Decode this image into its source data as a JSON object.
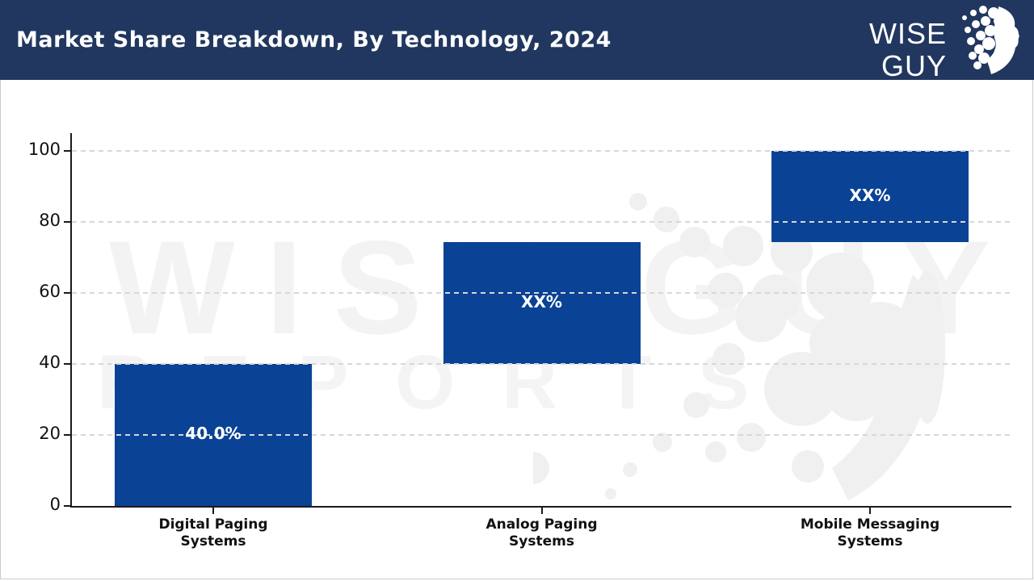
{
  "header": {
    "title": "Market Share Breakdown, By Technology, 2024",
    "bg_color": "#21375f",
    "logo": {
      "line1": "WISE GUY",
      "line2": "REPORTS"
    }
  },
  "watermark": {
    "line1": "WISE GUY",
    "line2": "REPORTS"
  },
  "chart_data": {
    "type": "bar",
    "subtype": "waterfall",
    "title": "Market Share Breakdown, By Technology, 2024",
    "categories": [
      "Digital Paging Systems",
      "Analog Paging Systems",
      "Mobile Messaging Systems"
    ],
    "categories_lines": [
      [
        "Digital Paging",
        "Systems"
      ],
      [
        "Analog Paging",
        "Systems"
      ],
      [
        "Mobile Messaging",
        "Systems"
      ]
    ],
    "segments": [
      {
        "start": 0,
        "end": 40,
        "label": "40.0%"
      },
      {
        "start": 40,
        "end": 74.3,
        "label": "XX%"
      },
      {
        "start": 74.3,
        "end": 100,
        "label": "XX%"
      }
    ],
    "yticks": [
      0,
      20,
      40,
      60,
      80,
      100
    ],
    "ylim": [
      0,
      105
    ],
    "xlabel": "",
    "ylabel": "",
    "grid": true,
    "grid_style": "dashed",
    "grid_above_bars": true,
    "legend": null,
    "bar_color": "#0a4296",
    "bar_label_color": "#ffffff",
    "axis_color": "#1a1a1a"
  }
}
